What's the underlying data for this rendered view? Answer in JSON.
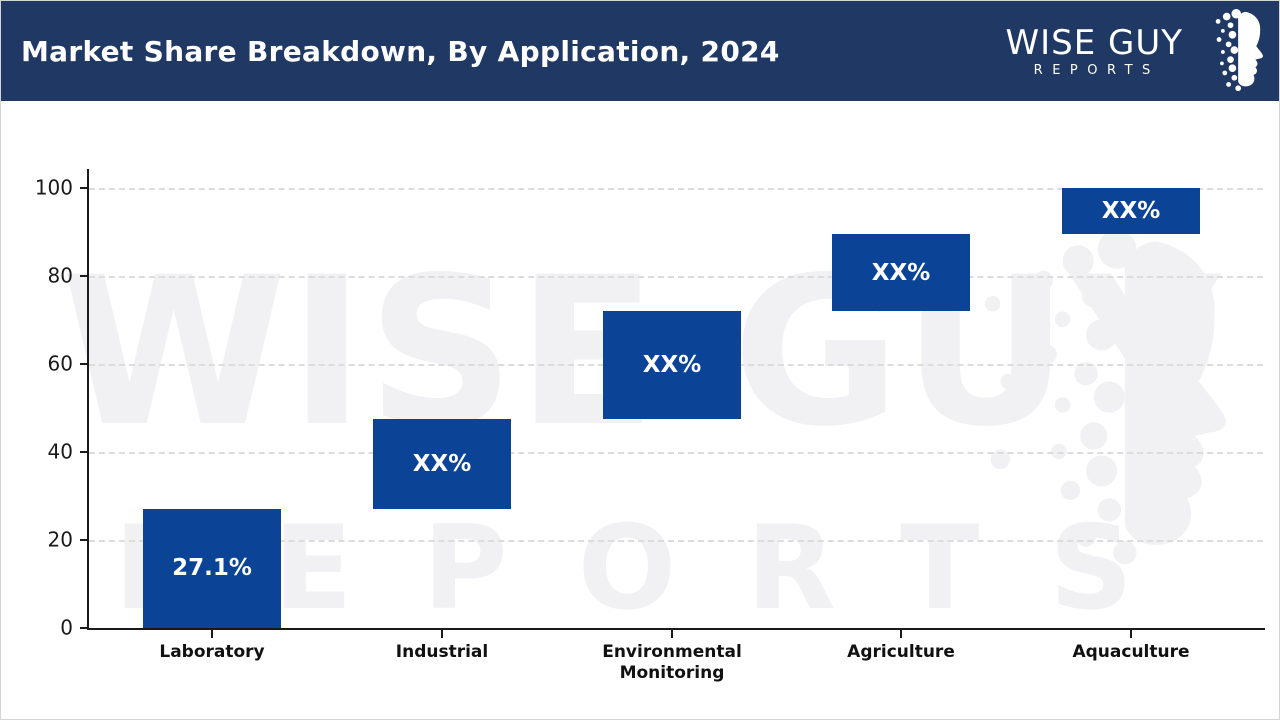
{
  "header": {
    "title": "Market Share Breakdown, By Application, 2024",
    "logo": {
      "line1": "WISE GUY",
      "line2": "REPORTS"
    }
  },
  "watermark": {
    "line1": "WISE GUY",
    "line2": "REPORTS"
  },
  "chart_data": {
    "type": "bar",
    "subtype": "waterfall",
    "title": "Market Share Breakdown, By Application, 2024",
    "categories": [
      "Laboratory",
      "Industrial",
      "Environmental Monitoring",
      "Agriculture",
      "Aquaculture"
    ],
    "series": [
      {
        "name": "Market Share %",
        "segments": [
          {
            "category": "Laboratory",
            "start": 0,
            "end": 27.1,
            "label": "27.1%"
          },
          {
            "category": "Industrial",
            "start": 27.1,
            "end": 47.6,
            "label": "XX%"
          },
          {
            "category": "Environmental Monitoring",
            "start": 47.6,
            "end": 72.0,
            "label": "XX%"
          },
          {
            "category": "Agriculture",
            "start": 72.0,
            "end": 89.5,
            "label": "XX%"
          },
          {
            "category": "Aquaculture",
            "start": 89.5,
            "end": 100.0,
            "label": "XX%"
          }
        ]
      }
    ],
    "yticks": [
      0,
      20,
      40,
      60,
      80,
      100
    ],
    "ylim": [
      0,
      104
    ],
    "xlabel": "",
    "ylabel": "",
    "grid": "horizontal-dashed",
    "legend": "none",
    "bar_color": "#0b4397",
    "bar_label_color": "#ffffff"
  },
  "colors": {
    "header_bg": "#1f3864",
    "bar": "#0b4397",
    "axis": "#1a1a1a",
    "grid": "#dcdcdd",
    "watermark": "#f1f1f4"
  }
}
